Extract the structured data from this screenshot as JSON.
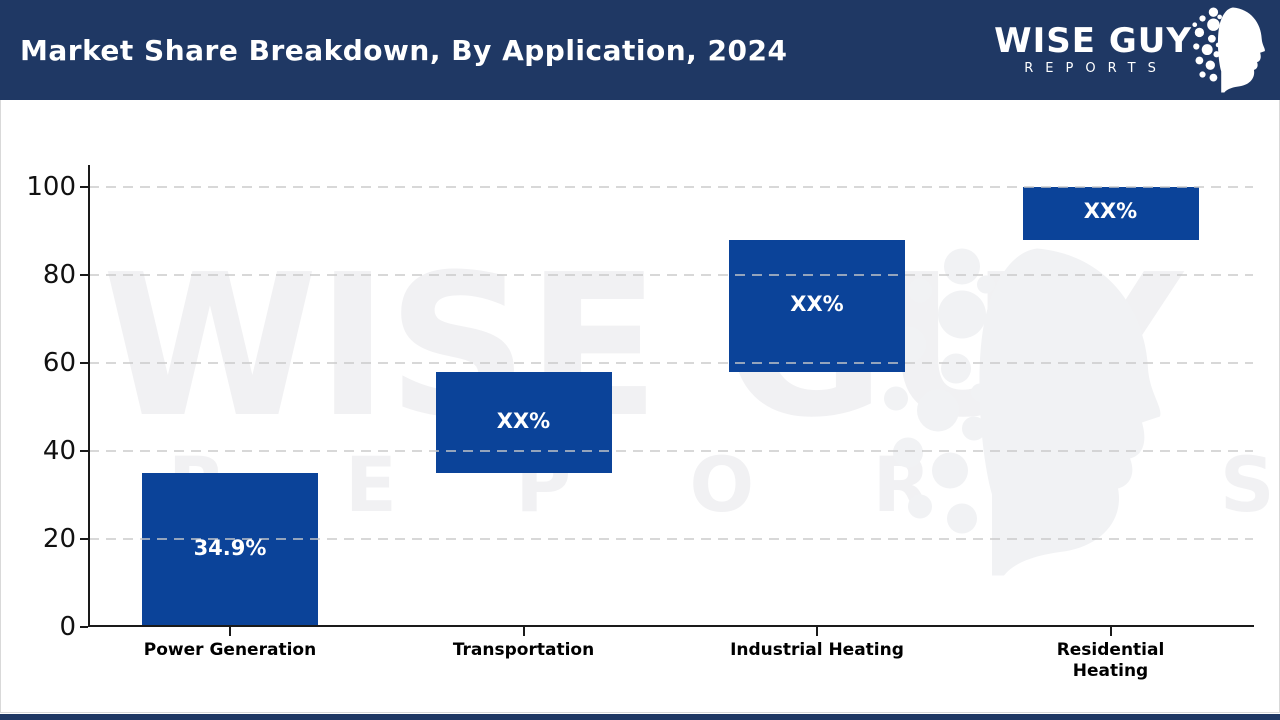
{
  "header": {
    "title": "Market Share Breakdown, By Application, 2024",
    "logo": {
      "line1": "WISE GUY",
      "line2": "REPORTS"
    }
  },
  "watermark": {
    "line1": "WISE GUY",
    "line2": "R E P O R T S"
  },
  "chart_data": {
    "type": "bar",
    "subtype": "waterfall",
    "title": "Market Share Breakdown, By Application, 2024",
    "categories": [
      "Power Generation",
      "Transportation",
      "Industrial Heating",
      "Residential\nHeating"
    ],
    "segments": [
      {
        "category": "Power Generation",
        "start": 0,
        "end": 34.9,
        "label": "34.9%"
      },
      {
        "category": "Transportation",
        "start": 34.9,
        "end": 57.9,
        "label": "XX%"
      },
      {
        "category": "Industrial Heating",
        "start": 57.9,
        "end": 88.0,
        "label": "XX%"
      },
      {
        "category": "Residential Heating",
        "start": 88.0,
        "end": 100,
        "label": "XX%"
      }
    ],
    "ylim": [
      0,
      100
    ],
    "yticks": [
      0,
      20,
      40,
      60,
      80,
      100
    ],
    "xlabel": "",
    "ylabel": "",
    "grid": "horizontal-dashed",
    "legend": null
  },
  "colors": {
    "header_bg": "#1f3864",
    "footer_bg": "#1f3864",
    "bar": "#0b4399",
    "bar_label": "#ffffff",
    "grid": "#c9c9c9",
    "axis": "#1a1a1a",
    "watermark": "#f1f1f3"
  }
}
